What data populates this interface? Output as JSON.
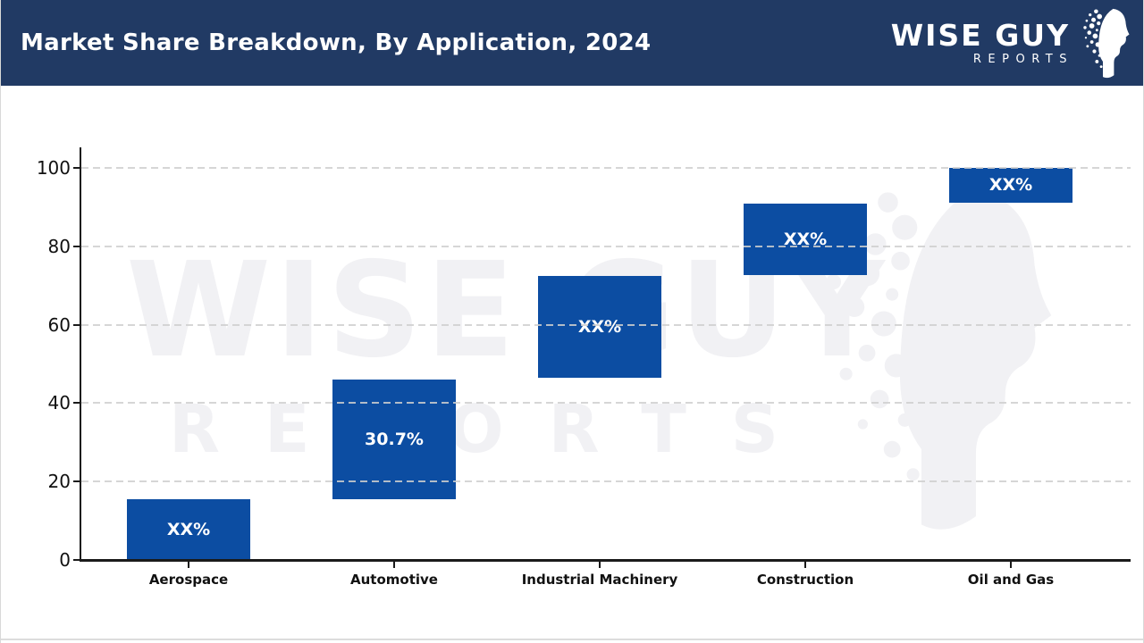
{
  "header": {
    "title": "Market Share Breakdown, By Application, 2024",
    "logo": {
      "line1": "WISE GUY",
      "line2": "REPORTS"
    }
  },
  "watermark": {
    "line1": "WISE GUY",
    "line2": "REPORTS"
  },
  "colors": {
    "header_bg": "#213a64",
    "bar": "#0c4da2",
    "bar_label": "#ffffff",
    "grid": "#cfcfcf",
    "axis": "#1a1a1a",
    "watermark": "#f1f1f4"
  },
  "chart_data": {
    "type": "bar",
    "subtype": "floating-waterfall",
    "title": "Market Share Breakdown, By Application, 2024",
    "categories": [
      "Aerospace",
      "Automotive",
      "Industrial Machinery",
      "Construction",
      "Oil and Gas"
    ],
    "series": [
      {
        "name": "Aerospace",
        "start": 0,
        "end": 15.4,
        "label": "XX%"
      },
      {
        "name": "Automotive",
        "start": 15.4,
        "end": 46.1,
        "label": "30.7%"
      },
      {
        "name": "Industrial Machinery",
        "start": 46.4,
        "end": 72.4,
        "label": "XX%"
      },
      {
        "name": "Construction",
        "start": 72.7,
        "end": 90.8,
        "label": "XX%"
      },
      {
        "name": "Oil and Gas",
        "start": 91.2,
        "end": 100,
        "label": "XX%"
      }
    ],
    "xlabel": "",
    "ylabel": "",
    "ylim": [
      0,
      100
    ],
    "yticks": [
      0,
      20,
      40,
      60,
      80,
      100
    ],
    "grid": {
      "horizontal": true,
      "style": "dashed",
      "drawn_over_bars": true
    },
    "legend": "none"
  }
}
